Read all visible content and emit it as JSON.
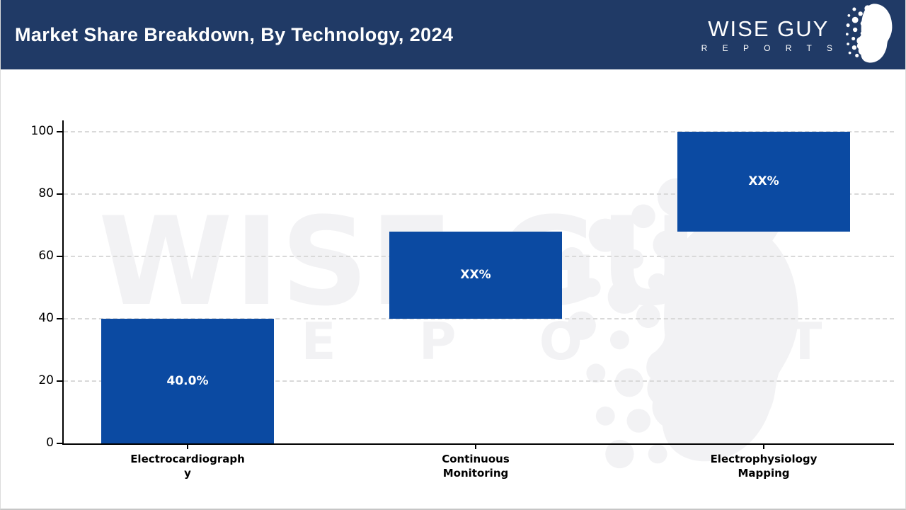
{
  "header": {
    "title": "Market Share Breakdown, By Technology, 2024",
    "logo": {
      "line1": "WISE GUY",
      "line2": "R E P O R T S",
      "icon": "dotted-face-profile"
    }
  },
  "watermark": {
    "line1": "WISE GUY",
    "line2": "R E P O R T S",
    "icon": "dotted-face-profile"
  },
  "colors": {
    "header_bg": "#203a66",
    "bar": "#0b4aa2",
    "bar_label": "#ffffff",
    "watermark": "#f2f2f4",
    "gridline": "#d9d9d9",
    "axis": "#000000",
    "bottom_rule": "#c6c6c6"
  },
  "chart_data": {
    "type": "bar",
    "subtype": "stepped-breakdown-waterfall",
    "title": "Market Share Breakdown, By Technology, 2024",
    "categories": [
      "Electrocardiography",
      "Continuous Monitoring",
      "Electrophysiology Mapping"
    ],
    "category_label_lines": [
      [
        "Electrocardiograph",
        "y"
      ],
      [
        "Continuous",
        "Monitoring"
      ],
      [
        "Electrophysiology",
        "Mapping"
      ]
    ],
    "segments": [
      {
        "category": "Electrocardiography",
        "start": 0,
        "end": 40,
        "label": "40.0%"
      },
      {
        "category": "Continuous Monitoring",
        "start": 40,
        "end": 68,
        "label": "XX%"
      },
      {
        "category": "Electrophysiology Mapping",
        "start": 68,
        "end": 100,
        "label": "XX%"
      }
    ],
    "ylim": [
      0,
      100
    ],
    "yticks": [
      0,
      20,
      40,
      60,
      80,
      100
    ],
    "xlabel": "",
    "ylabel": "",
    "grid": "horizontal-dashed",
    "legend": "none",
    "bar_color": "#0b4aa2"
  }
}
